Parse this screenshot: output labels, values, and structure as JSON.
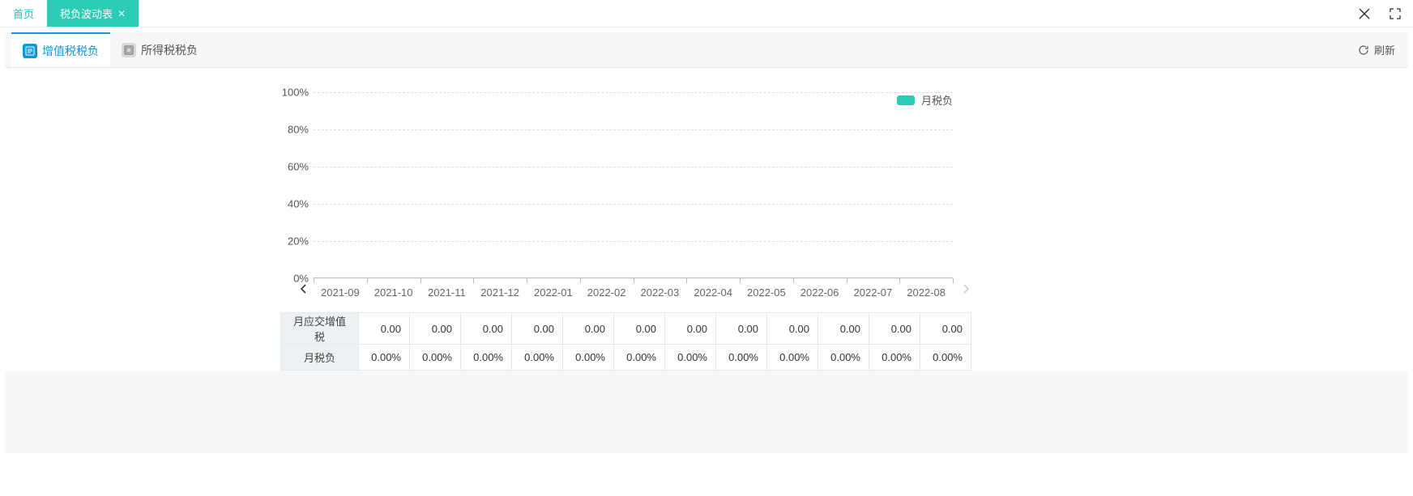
{
  "tabs": {
    "home_label": "首页",
    "active_label": "税负波动表",
    "active_color": "#2ccbb5",
    "home_text_color": "#18c7b7"
  },
  "subtabs": {
    "vat_label": "增值税税负",
    "income_label": "所得税税负",
    "active_accent": "#1296db"
  },
  "toolbar": {
    "refresh_label": "刷新"
  },
  "chart": {
    "type": "line",
    "legend_label": "月税负",
    "legend_color": "#2ccbb5",
    "y_ticks": [
      "0%",
      "20%",
      "40%",
      "60%",
      "80%",
      "100%"
    ],
    "ylim": [
      0,
      100
    ],
    "ytick_step": 20,
    "x_labels": [
      "2021-09",
      "2021-10",
      "2021-11",
      "2021-12",
      "2022-01",
      "2022-02",
      "2022-03",
      "2022-04",
      "2022-05",
      "2022-06",
      "2022-07",
      "2022-08"
    ],
    "series_values": [
      0,
      0,
      0,
      0,
      0,
      0,
      0,
      0,
      0,
      0,
      0,
      0
    ],
    "grid_color": "#dcdfe2",
    "axis_color": "#b7bbbf",
    "background_color": "#ffffff",
    "label_fontsize": 13,
    "label_color": "#555555"
  },
  "table": {
    "row1_header": "月应交增值税",
    "row1_values": [
      "0.00",
      "0.00",
      "0.00",
      "0.00",
      "0.00",
      "0.00",
      "0.00",
      "0.00",
      "0.00",
      "0.00",
      "0.00",
      "0.00"
    ],
    "row2_header": "月税负",
    "row2_values": [
      "0.00%",
      "0.00%",
      "0.00%",
      "0.00%",
      "0.00%",
      "0.00%",
      "0.00%",
      "0.00%",
      "0.00%",
      "0.00%",
      "0.00%",
      "0.00%"
    ]
  }
}
